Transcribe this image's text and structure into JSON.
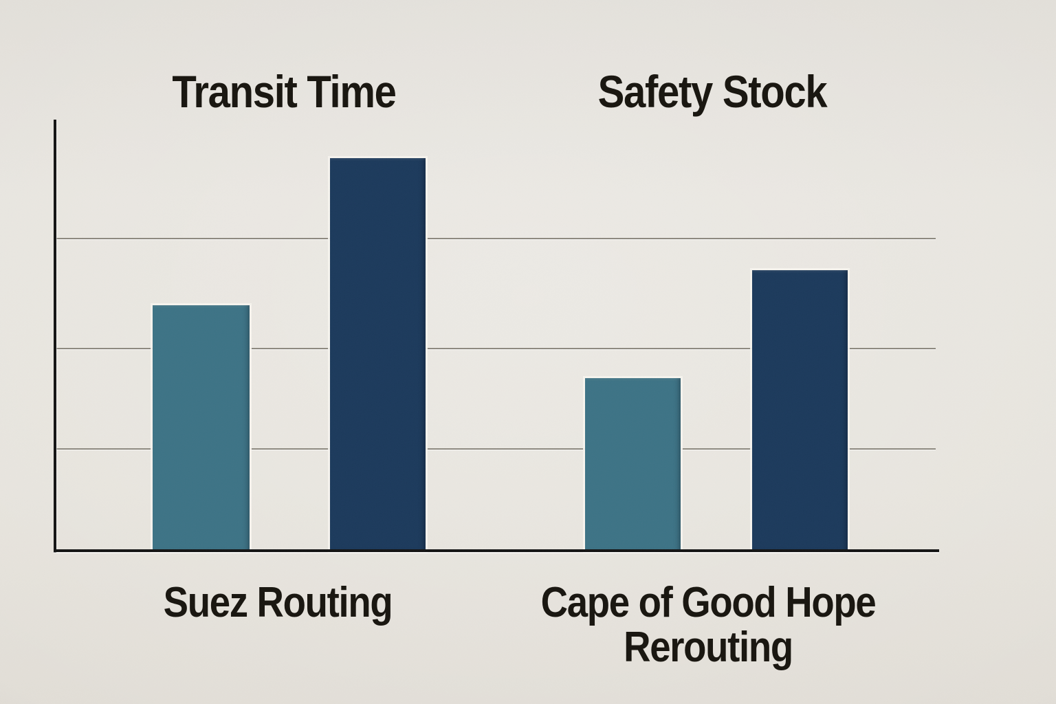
{
  "page": {
    "background_color": "#e7e4de",
    "text_color": "#18150f"
  },
  "chart_data": {
    "type": "bar",
    "title": "",
    "xlabel": "",
    "ylabel": "",
    "group_titles": [
      "Transit Time",
      "Safety Stock"
    ],
    "categories": [
      "Suez Routing",
      "Cape of Good Hope Rerouting"
    ],
    "series": [
      {
        "name": "teal-bar",
        "color": "#3d7386",
        "values": [
          57,
          40
        ]
      },
      {
        "name": "navy-bar",
        "color": "#1c3a5c",
        "values": [
          91,
          65
        ]
      }
    ],
    "ylim": [
      0,
      100
    ],
    "values_note": "relative bar heights as % of y-axis; no numeric tick labels are shown in the image",
    "y_tick_labels_visible": false,
    "legend": "none",
    "gridlines": {
      "visible": true,
      "y_values": [
        23.8,
        47.0,
        72.5
      ]
    },
    "axis_color": "#141414",
    "gridline_color": "#8d897f",
    "bar_outline_color": "#f4f2ec"
  }
}
